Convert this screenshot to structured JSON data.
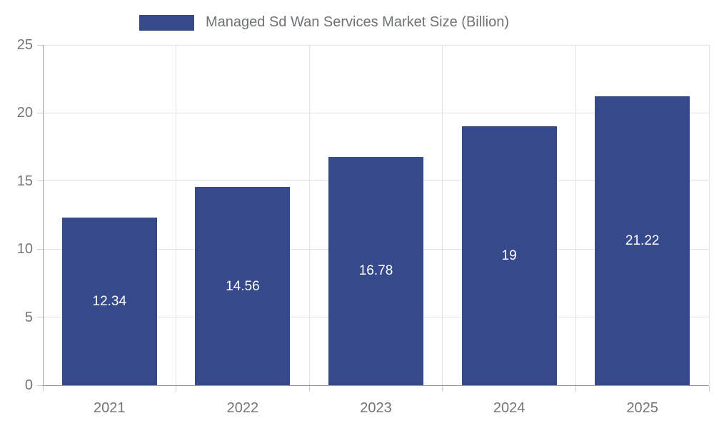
{
  "legend": {
    "label": "Managed Sd Wan Services Market Size (Billion)"
  },
  "chart_data": {
    "type": "bar",
    "title": "Managed Sd Wan Services Market Size (Billion)",
    "categories": [
      "2021",
      "2022",
      "2023",
      "2024",
      "2025"
    ],
    "series": [
      {
        "name": "Managed Sd Wan Services Market Size (Billion)",
        "values": [
          12.34,
          14.56,
          16.78,
          19,
          21.22
        ]
      }
    ],
    "value_labels": [
      "12.34",
      "14.56",
      "16.78",
      "19",
      "21.22"
    ],
    "xlabel": "",
    "ylabel": "",
    "ylim": [
      0,
      25
    ],
    "y_ticks": [
      0,
      5,
      10,
      15,
      20,
      25
    ],
    "grid": true,
    "legend_position": "top-center"
  },
  "colors": {
    "bar": "#36498B",
    "gridline": "#E3E3E3",
    "axis_line": "#999999",
    "tick_mark": "#CCCCCC",
    "tick_label": "#757575",
    "value_label": "#FFFFFF",
    "legend_text": "#6E7275",
    "background": "#FFFFFF"
  }
}
